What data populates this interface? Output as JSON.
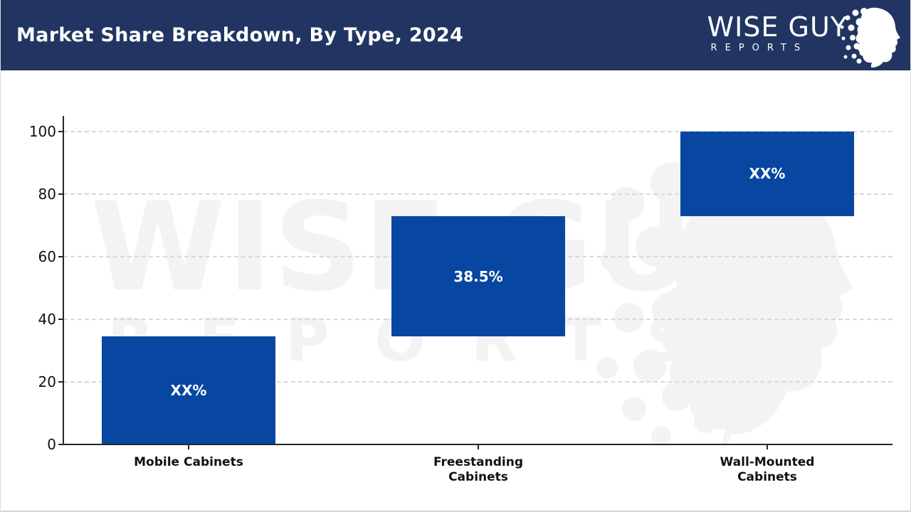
{
  "header": {
    "title": "Market Share Breakdown, By Type, 2024",
    "background_color": "#223562",
    "logo": {
      "line1": "WISE GUY",
      "line2": "REPORTS"
    }
  },
  "watermark": {
    "line1": "WISE GUY",
    "line2": "REPORTS"
  },
  "chart_data": {
    "type": "bar",
    "subtype": "waterfall-floating-segments",
    "title": "Market Share Breakdown, By Type, 2024",
    "categories": [
      "Mobile Cabinets",
      "Freestanding\nCabinets",
      "Wall-Mounted\nCabinets"
    ],
    "segments": [
      {
        "category": "Mobile Cabinets",
        "start": 0,
        "end": 34.5,
        "label": "XX%"
      },
      {
        "category": "Freestanding Cabinets",
        "start": 34.5,
        "end": 73,
        "label": "38.5%"
      },
      {
        "category": "Wall-Mounted Cabinets",
        "start": 73,
        "end": 100,
        "label": "XX%"
      }
    ],
    "yticks": [
      0,
      20,
      40,
      60,
      80,
      100
    ],
    "ylim": [
      0,
      105
    ],
    "xlabel": "",
    "ylabel": "",
    "bar_color": "#0747a1",
    "axis_color": "#262626",
    "grid": {
      "axis": "y",
      "style": "dashed",
      "color": "#d8d8d8"
    },
    "legend": null
  }
}
